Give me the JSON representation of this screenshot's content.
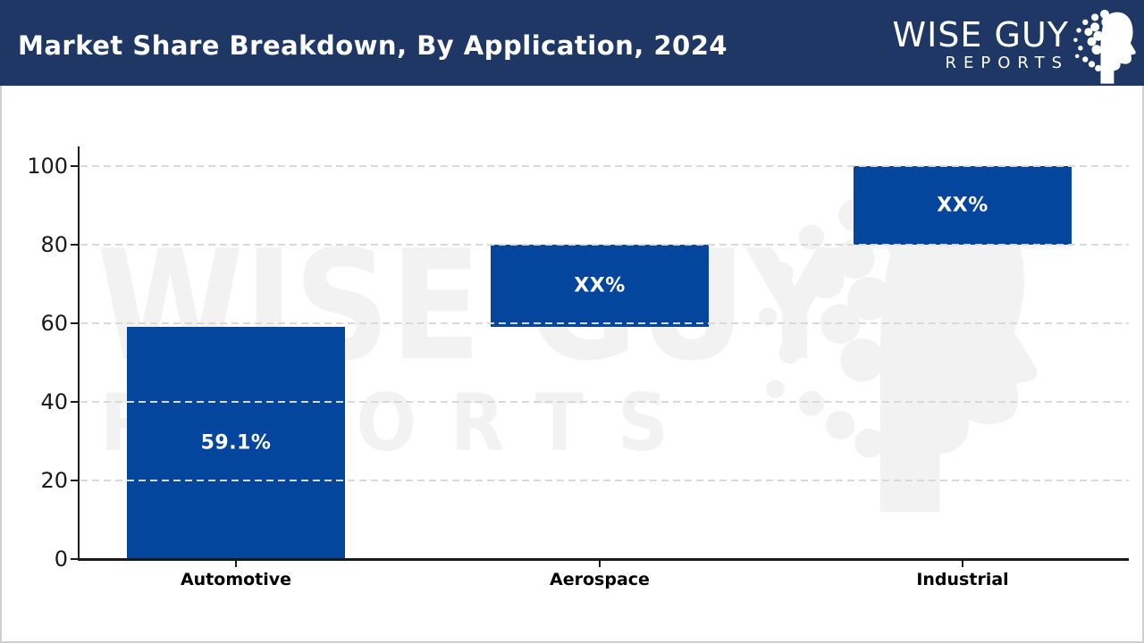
{
  "header": {
    "title": "Market Share Breakdown, By Application, 2024",
    "logo": {
      "line1": "WISE GUY",
      "line2": "REPORTS"
    }
  },
  "watermark": {
    "line1": "WISE GUY",
    "line2": "REPORTS"
  },
  "colors": {
    "header_bg": "#1e3765",
    "bar": "#04459d",
    "bar_label": "#ffffff",
    "grid": "#d9d9d9",
    "axis": "#1a1a1a",
    "watermark": "#f2f2f2"
  },
  "chart_data": {
    "type": "bar",
    "subtype": "waterfall",
    "title": "Market Share Breakdown, By Application, 2024",
    "categories": [
      "Automotive",
      "Aerospace",
      "Industrial"
    ],
    "segments": [
      {
        "category": "Automotive",
        "start": 0,
        "end": 59.1,
        "label": "59.1%"
      },
      {
        "category": "Aerospace",
        "start": 59.1,
        "end": 80.1,
        "label": "XX%"
      },
      {
        "category": "Industrial",
        "start": 80.1,
        "end": 100,
        "label": "XX%"
      }
    ],
    "yticks": [
      0,
      20,
      40,
      60,
      80,
      100
    ],
    "ylim": [
      0,
      105
    ],
    "xlabel": "",
    "ylabel": "",
    "grid": "horizontal-dashed",
    "gridlines_above_bars": true,
    "legend": "none"
  }
}
